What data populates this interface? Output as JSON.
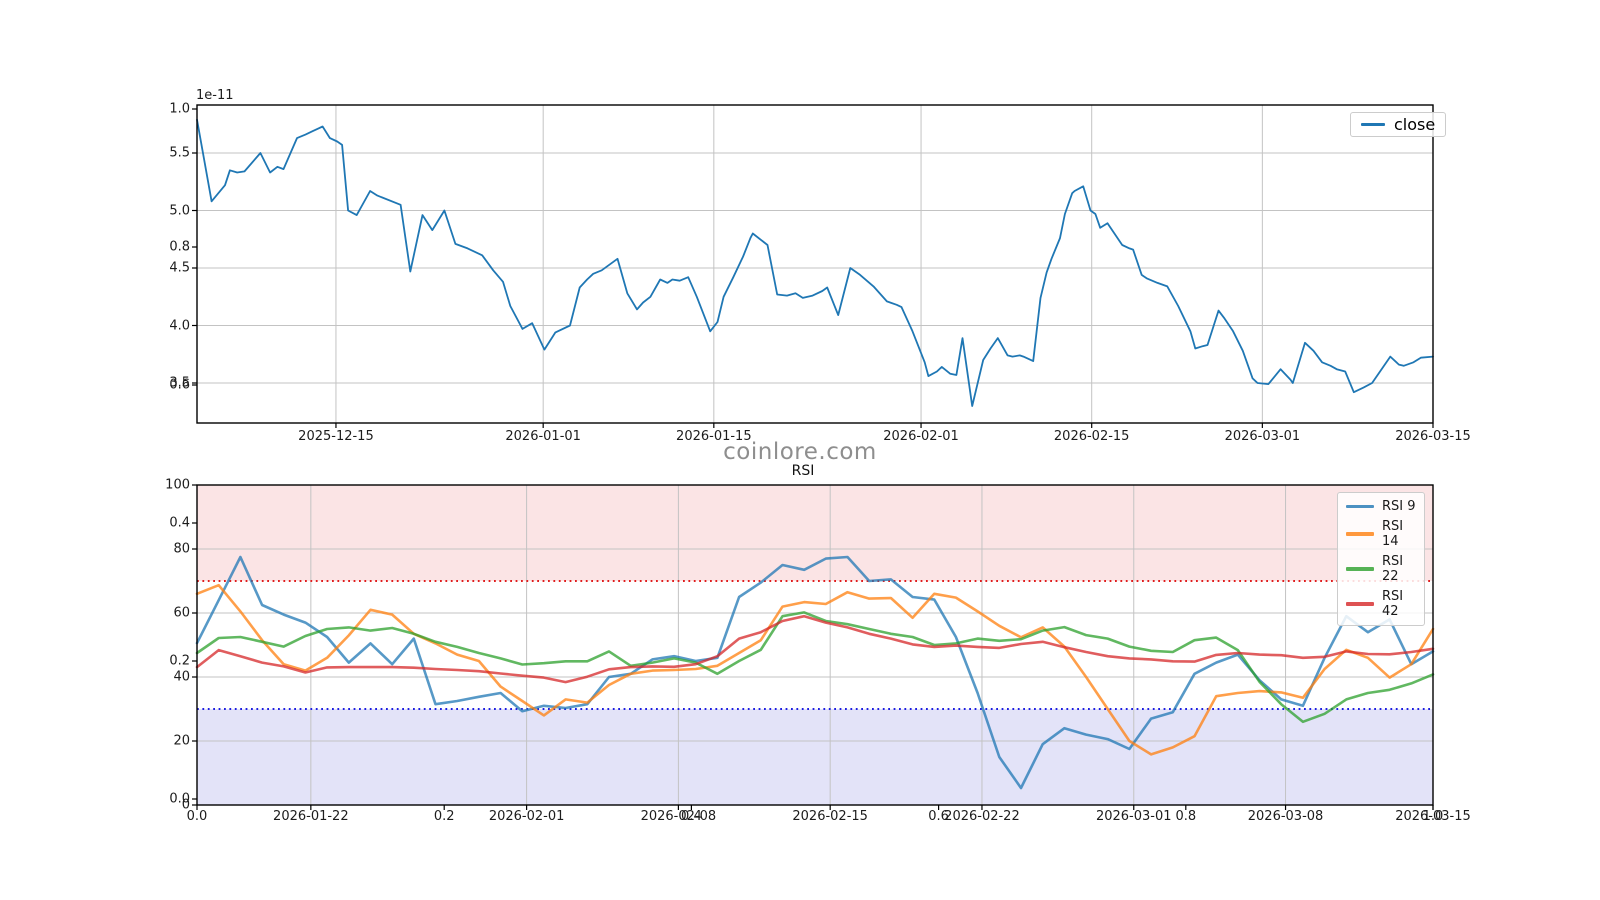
{
  "ui": {
    "watermark": "coinlore.com",
    "background": "#ffffff",
    "text_color": "#1c1c1c",
    "grid_color": "#c3c3c3",
    "spine_color": "#000000"
  },
  "overlay_axis": {
    "y_labels": [
      "1.0",
      "0.8",
      "0.6",
      "0.4",
      "0.2",
      "0.0"
    ],
    "x_labels": [
      "0.0",
      "0.2",
      "0.4",
      "0.6",
      "0.8",
      "1.0"
    ]
  },
  "chart_data": [
    {
      "type": "line",
      "name": "price",
      "title": "",
      "y_offset_text": "1e-11",
      "legend_position": "upper right",
      "grid": true,
      "ylim_e11": [
        3.15,
        5.92
      ],
      "y_ticks": [
        5.5,
        5.0,
        4.5,
        4.0,
        3.5
      ],
      "y_tick_labels": [
        "5.5",
        "5.0",
        "4.5",
        "4.0",
        "3.5"
      ],
      "x_tick_labels": [
        "2025-12-15",
        "2026-01-01",
        "2026-01-15",
        "2026-02-01",
        "2026-02-15",
        "2026-03-01",
        "2026-03-15"
      ],
      "x_tick_days": [
        11.4,
        28.4,
        42.4,
        59.4,
        73.4,
        87.4,
        101.4
      ],
      "x_range_days": 101.4,
      "series": [
        {
          "name": "close",
          "color": "#1f77b4",
          "units": "1e-11",
          "points": [
            [
              0,
              5.79
            ],
            [
              1.2,
              5.08
            ],
            [
              2.3,
              5.22
            ],
            [
              2.7,
              5.35
            ],
            [
              3.3,
              5.33
            ],
            [
              3.9,
              5.34
            ],
            [
              5.2,
              5.5
            ],
            [
              6,
              5.33
            ],
            [
              6.6,
              5.38
            ],
            [
              7.1,
              5.36
            ],
            [
              8.2,
              5.63
            ],
            [
              8.9,
              5.66
            ],
            [
              9.5,
              5.69
            ],
            [
              10.3,
              5.73
            ],
            [
              10.9,
              5.63
            ],
            [
              11.5,
              5.6
            ],
            [
              11.9,
              5.57
            ],
            [
              12.4,
              5
            ],
            [
              13.1,
              4.96
            ],
            [
              14.2,
              5.17
            ],
            [
              14.8,
              5.13
            ],
            [
              16.7,
              5.05
            ],
            [
              17.5,
              4.47
            ],
            [
              18.5,
              4.96
            ],
            [
              19.3,
              4.83
            ],
            [
              20.3,
              5
            ],
            [
              21.2,
              4.71
            ],
            [
              22.2,
              4.67
            ],
            [
              23.4,
              4.61
            ],
            [
              24.3,
              4.48
            ],
            [
              25.1,
              4.38
            ],
            [
              25.7,
              4.17
            ],
            [
              26.7,
              3.97
            ],
            [
              27.5,
              4.02
            ],
            [
              28.5,
              3.79
            ],
            [
              29.4,
              3.94
            ],
            [
              30.6,
              4
            ],
            [
              31.4,
              4.33
            ],
            [
              32,
              4.4
            ],
            [
              32.5,
              4.45
            ],
            [
              33.2,
              4.48
            ],
            [
              34.5,
              4.58
            ],
            [
              35.3,
              4.28
            ],
            [
              36.1,
              4.14
            ],
            [
              36.6,
              4.2
            ],
            [
              37.2,
              4.25
            ],
            [
              38,
              4.4
            ],
            [
              38.6,
              4.37
            ],
            [
              39,
              4.4
            ],
            [
              39.6,
              4.39
            ],
            [
              40.3,
              4.42
            ],
            [
              41,
              4.25
            ],
            [
              42.1,
              3.95
            ],
            [
              42.7,
              4.03
            ],
            [
              43.2,
              4.25
            ],
            [
              44,
              4.42
            ],
            [
              44.8,
              4.6
            ],
            [
              45.4,
              4.76
            ],
            [
              45.6,
              4.8
            ],
            [
              46.8,
              4.7
            ],
            [
              47.6,
              4.27
            ],
            [
              48.4,
              4.26
            ],
            [
              49.1,
              4.28
            ],
            [
              49.7,
              4.24
            ],
            [
              50.5,
              4.26
            ],
            [
              51.3,
              4.3
            ],
            [
              51.7,
              4.33
            ],
            [
              52.6,
              4.09
            ],
            [
              53.6,
              4.5
            ],
            [
              54.4,
              4.44
            ],
            [
              55.5,
              4.34
            ],
            [
              56.6,
              4.21
            ],
            [
              57.4,
              4.18
            ],
            [
              57.8,
              4.16
            ],
            [
              58.7,
              3.95
            ],
            [
              59.7,
              3.68
            ],
            [
              60,
              3.56
            ],
            [
              60.7,
              3.6
            ],
            [
              61.1,
              3.64
            ],
            [
              61.8,
              3.58
            ],
            [
              62.3,
              3.57
            ],
            [
              62.8,
              3.89
            ],
            [
              63.6,
              3.3
            ],
            [
              64.5,
              3.7
            ],
            [
              65.1,
              3.8
            ],
            [
              65.7,
              3.89
            ],
            [
              66.5,
              3.74
            ],
            [
              66.9,
              3.73
            ],
            [
              67.5,
              3.74
            ],
            [
              67.8,
              3.73
            ],
            [
              68.6,
              3.69
            ],
            [
              69.2,
              4.24
            ],
            [
              69.7,
              4.46
            ],
            [
              70.1,
              4.58
            ],
            [
              70.8,
              4.76
            ],
            [
              71.2,
              4.97
            ],
            [
              71.8,
              5.15
            ],
            [
              72,
              5.17
            ],
            [
              72.7,
              5.21
            ],
            [
              73.3,
              5
            ],
            [
              73.7,
              4.97
            ],
            [
              74.1,
              4.85
            ],
            [
              74.7,
              4.89
            ],
            [
              75.9,
              4.7
            ],
            [
              76.5,
              4.67
            ],
            [
              76.8,
              4.66
            ],
            [
              77.5,
              4.44
            ],
            [
              77.9,
              4.41
            ],
            [
              78.8,
              4.37
            ],
            [
              79.6,
              4.34
            ],
            [
              80.5,
              4.17
            ],
            [
              81.5,
              3.95
            ],
            [
              81.9,
              3.8
            ],
            [
              82.5,
              3.82
            ],
            [
              82.9,
              3.83
            ],
            [
              83.8,
              4.13
            ],
            [
              84.3,
              4.06
            ],
            [
              85,
              3.95
            ],
            [
              85.8,
              3.78
            ],
            [
              86.6,
              3.54
            ],
            [
              87,
              3.5
            ],
            [
              87.9,
              3.49
            ],
            [
              88.9,
              3.62
            ],
            [
              89.7,
              3.53
            ],
            [
              89.9,
              3.5
            ],
            [
              90.9,
              3.85
            ],
            [
              91.6,
              3.78
            ],
            [
              92.3,
              3.68
            ],
            [
              93,
              3.65
            ],
            [
              93.5,
              3.62
            ],
            [
              94.2,
              3.6
            ],
            [
              94.9,
              3.42
            ],
            [
              95.7,
              3.46
            ],
            [
              96.4,
              3.5
            ],
            [
              97.9,
              3.73
            ],
            [
              98.6,
              3.66
            ],
            [
              99,
              3.65
            ],
            [
              99.8,
              3.68
            ],
            [
              100.4,
              3.72
            ],
            [
              101.4,
              3.73
            ]
          ]
        }
      ]
    },
    {
      "type": "line",
      "name": "rsi",
      "title": "RSI",
      "legend_position": "upper right",
      "grid": true,
      "ylim": [
        0,
        100
      ],
      "y_ticks": [
        100,
        80,
        60,
        40,
        20,
        0
      ],
      "y_tick_labels": [
        "100",
        "80",
        "60",
        "40",
        "20",
        "0"
      ],
      "x_tick_labels": [
        "2026-01-22",
        "2026-02-01",
        "2026-02-08",
        "2026-02-15",
        "2026-02-22",
        "2026-03-01",
        "2026-03-08",
        "2026-03-15"
      ],
      "x_tick_days": [
        5.25,
        15.2,
        22.2,
        29.2,
        36.2,
        43.2,
        50.2,
        57
      ],
      "thresholds": {
        "overbought": 70,
        "oversold": 30
      },
      "band_colors": {
        "overbought": "#fbe4e5",
        "oversold": "#e3e3f8"
      },
      "threshold_colors": {
        "overbought": "#e01d1d",
        "oversold": "#1d1de0"
      },
      "series": [
        {
          "name": "RSI 9",
          "color": "#1f77b4",
          "values": [
            50.6,
            64,
            77.5,
            62.5,
            59.5,
            57,
            52.5,
            44.5,
            50.5,
            44,
            52,
            31.5,
            32.5,
            33.8,
            35,
            29.3,
            31,
            30.3,
            31.5,
            40,
            41,
            45.5,
            46.5,
            45,
            46,
            65,
            69.5,
            75,
            73.5,
            77,
            77.5,
            70,
            70.5,
            65,
            64.2,
            52.5,
            35,
            15,
            5.3,
            19,
            24,
            22,
            20.6,
            17.5,
            27,
            29,
            41,
            44.5,
            47,
            39,
            33,
            31,
            46,
            59,
            54,
            58,
            44,
            48
          ]
        },
        {
          "name": "RSI 14",
          "color": "#ff7f0e",
          "values": [
            66,
            68.7,
            60.5,
            51.5,
            44,
            42,
            46,
            53,
            61,
            59.5,
            53.5,
            50.5,
            47,
            45,
            37,
            32.5,
            28,
            33,
            32,
            37.5,
            41,
            42,
            42.2,
            42.5,
            43.5,
            47.5,
            51.5,
            62,
            63.4,
            62.8,
            66.5,
            64.5,
            64.7,
            58.5,
            66,
            64.8,
            60.5,
            56,
            52.4,
            55.5,
            49.5,
            40,
            30,
            20,
            15.8,
            18,
            21.5,
            34,
            35,
            35.6,
            35.2,
            33.5,
            42.5,
            48.5,
            46,
            39.8,
            44,
            55
          ]
        },
        {
          "name": "RSI 22",
          "color": "#2ca02c",
          "values": [
            47.5,
            52.2,
            52.5,
            51,
            49.5,
            52.8,
            55,
            55.5,
            54.5,
            55.3,
            53.5,
            51,
            49.4,
            47.5,
            45.8,
            43.9,
            44.3,
            44.9,
            44.9,
            48,
            43.5,
            44.5,
            45.8,
            44.5,
            41,
            45,
            48.5,
            59,
            60.2,
            57.5,
            56.5,
            55,
            53.5,
            52.5,
            50,
            50.5,
            52,
            51.3,
            51.8,
            54.5,
            55.6,
            53.1,
            52,
            49.5,
            48.2,
            47.8,
            51.5,
            52.3,
            48.4,
            38.5,
            31.5,
            26,
            28.5,
            33,
            35,
            36,
            38,
            40.8
          ]
        },
        {
          "name": "RSI 42",
          "color": "#d62728",
          "values": [
            43.1,
            48.4,
            46.5,
            44.5,
            43.3,
            41.4,
            43,
            43.1,
            43.1,
            43.1,
            42.9,
            42.5,
            42.2,
            41.8,
            41.1,
            40.4,
            39.8,
            38.4,
            40.1,
            42.4,
            43.1,
            43.3,
            43.2,
            44,
            46.5,
            52,
            54,
            57.5,
            59,
            57,
            55.5,
            53.5,
            52,
            50.2,
            49.4,
            49.8,
            49.4,
            49.1,
            50.3,
            51,
            49.3,
            47.8,
            46.5,
            45.8,
            45.5,
            44.9,
            44.8,
            46.9,
            47.5,
            47,
            46.8,
            46,
            46.3,
            48,
            47.2,
            47.1,
            47.8,
            48.8
          ]
        }
      ]
    }
  ]
}
